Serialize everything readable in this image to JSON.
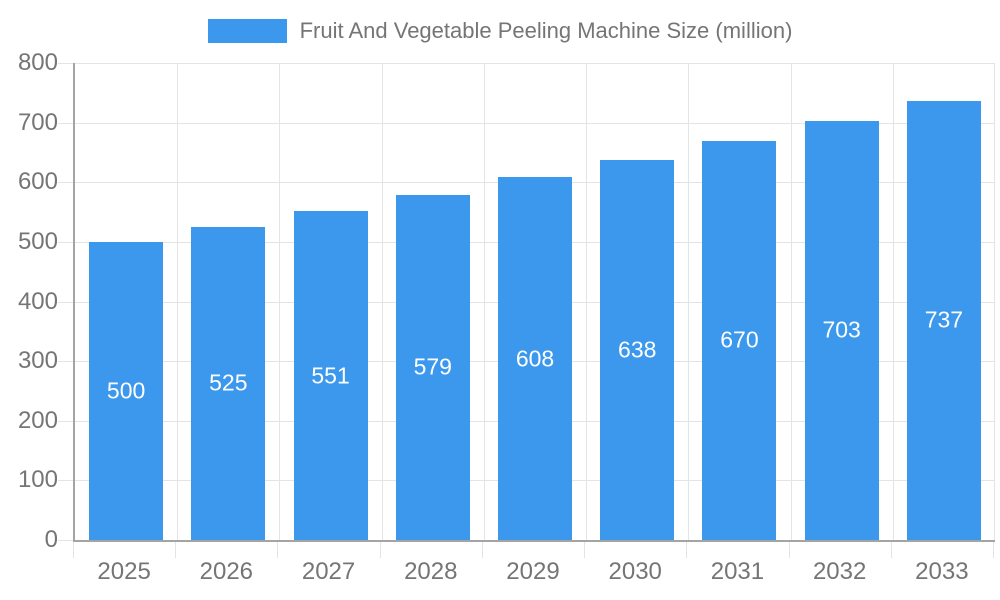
{
  "chart": {
    "legend_label": "Fruit And Vegetable Peeling Machine Size (million)"
  },
  "chart_data": {
    "type": "bar",
    "title": "Fruit And Vegetable Peeling Machine Size (million)",
    "categories": [
      "2025",
      "2026",
      "2027",
      "2028",
      "2029",
      "2030",
      "2031",
      "2032",
      "2033"
    ],
    "values": [
      500,
      525,
      551,
      579,
      608,
      638,
      670,
      703,
      737
    ],
    "xlabel": "",
    "ylabel": "",
    "ylim": [
      0,
      800
    ],
    "ytick_interval": 100,
    "yticks": [
      "0",
      "100",
      "200",
      "300",
      "400",
      "500",
      "600",
      "700",
      "800"
    ],
    "grid": true,
    "legend_position": "top-center",
    "bar_labels_inside": true,
    "colors": {
      "bar": "#3B98EC",
      "bar_label": "#FFFFFF",
      "text": "#757575",
      "axis": "#A4A4A4",
      "grid": "#E4E4E4",
      "background": "#FFFFFF"
    }
  }
}
